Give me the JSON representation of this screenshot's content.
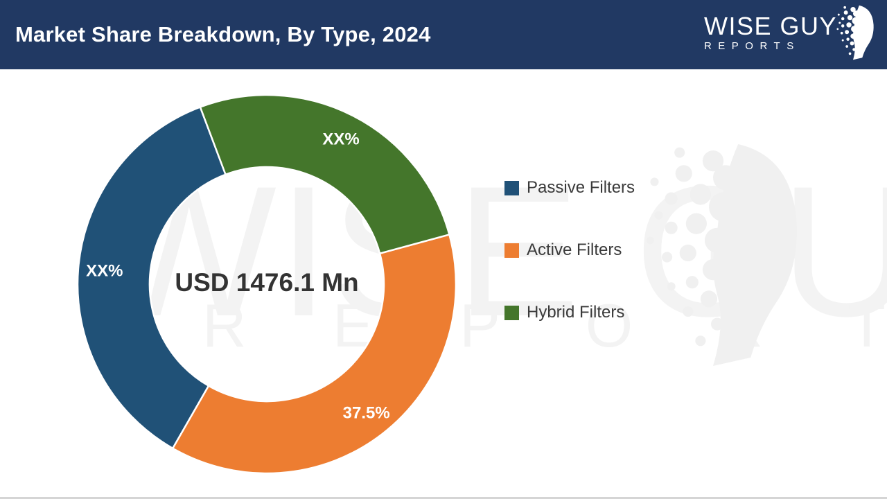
{
  "header": {
    "title": "Market Share Breakdown, By Type, 2024",
    "background_color": "#213963",
    "logo": {
      "line1": "WISE GUY",
      "line2": "REPORTS"
    }
  },
  "watermark": {
    "line1": "WISE GUY",
    "line2": "R E P O R T S"
  },
  "chart_data": {
    "type": "pie",
    "subtype": "donut",
    "title": "Market Share Breakdown, By Type, 2024",
    "center_label": "USD 1476.1 Mn",
    "legend_position": "right",
    "start_angle_deg": 110.6,
    "direction": "counterclockwise",
    "inner_radius_ratio": 0.62,
    "series": [
      {
        "name": "Passive Filters",
        "label": "XX%",
        "value": 36.0,
        "color": "#205177"
      },
      {
        "name": "Active Filters",
        "label": "37.5%",
        "value": 37.5,
        "color": "#ED7D31"
      },
      {
        "name": "Hybrid Filters",
        "label": "XX%",
        "value": 26.5,
        "color": "#44762B"
      }
    ]
  },
  "colors": {
    "header_bg": "#213963",
    "segment_label_text": "#FFFFFF",
    "center_text": "#333333",
    "legend_text": "#3A3A3A",
    "watermark": "#F3F3F3",
    "bottom_line": "#D5D5D5"
  }
}
